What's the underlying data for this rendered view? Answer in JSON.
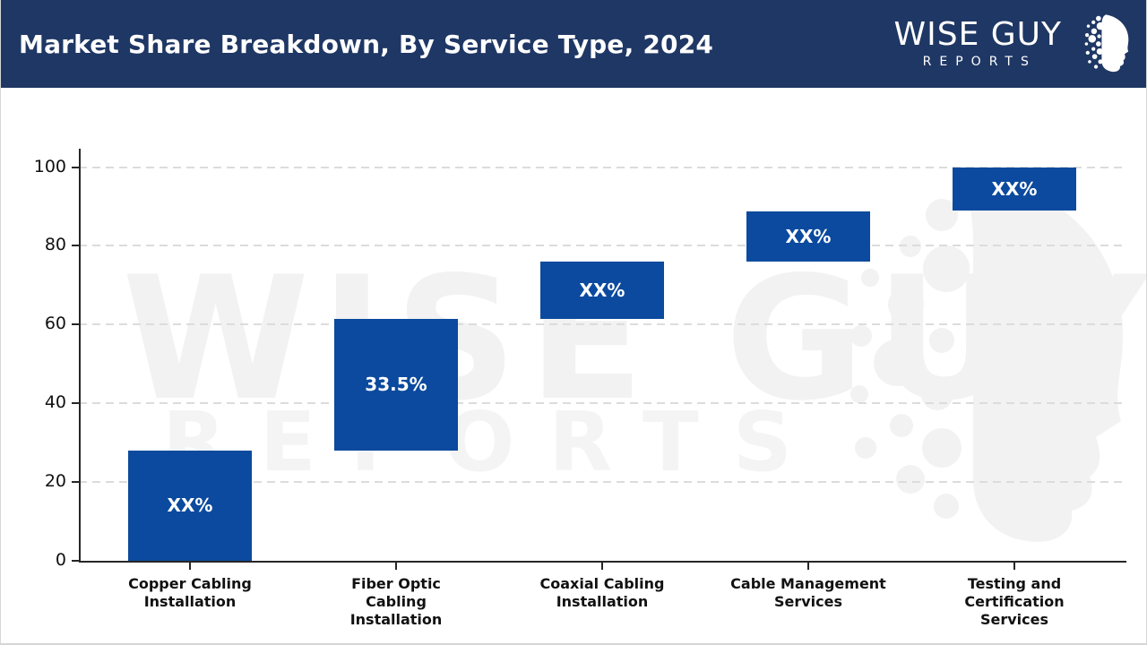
{
  "header": {
    "title": "Market Share Breakdown, By Service Type, 2024",
    "bg_color": "#1f3764",
    "logo": {
      "line1": "WISE GUY",
      "line2": "REPORTS"
    }
  },
  "watermark": {
    "line1": "WISE GUY",
    "line2": "REPORTS"
  },
  "chart_data": {
    "type": "bar",
    "subtype": "waterfall",
    "title": "Market Share Breakdown, By Service Type, 2024",
    "xlabel": "",
    "ylabel": "",
    "ylim": [
      0,
      100
    ],
    "yticks": [
      0,
      20,
      40,
      60,
      80,
      100
    ],
    "grid": "horizontal dashed",
    "legend": "none",
    "bar_color": "#0b4a9e",
    "categories": [
      "Copper Cabling Installation",
      "Fiber Optic Cabling Installation",
      "Coaxial Cabling Installation",
      "Cable Management Services",
      "Testing and Certification Services"
    ],
    "category_label_lines": [
      [
        "Copper Cabling",
        "Installation"
      ],
      [
        "Fiber Optic",
        "Cabling",
        "Installation"
      ],
      [
        "Coaxial Cabling",
        "Installation"
      ],
      [
        "Cable Management",
        "Services"
      ],
      [
        "Testing and",
        "Certification",
        "Services"
      ]
    ],
    "bars": [
      {
        "category": "Copper Cabling Installation",
        "start": 0,
        "end": 28,
        "label": "XX%"
      },
      {
        "category": "Fiber Optic Cabling Installation",
        "start": 28,
        "end": 61.5,
        "label": "33.5%"
      },
      {
        "category": "Coaxial Cabling Installation",
        "start": 61.5,
        "end": 76,
        "label": "XX%"
      },
      {
        "category": "Cable Management Services",
        "start": 76,
        "end": 88.8,
        "label": "XX%"
      },
      {
        "category": "Testing and Certification Services",
        "start": 89,
        "end": 100,
        "label": "XX%"
      }
    ]
  }
}
